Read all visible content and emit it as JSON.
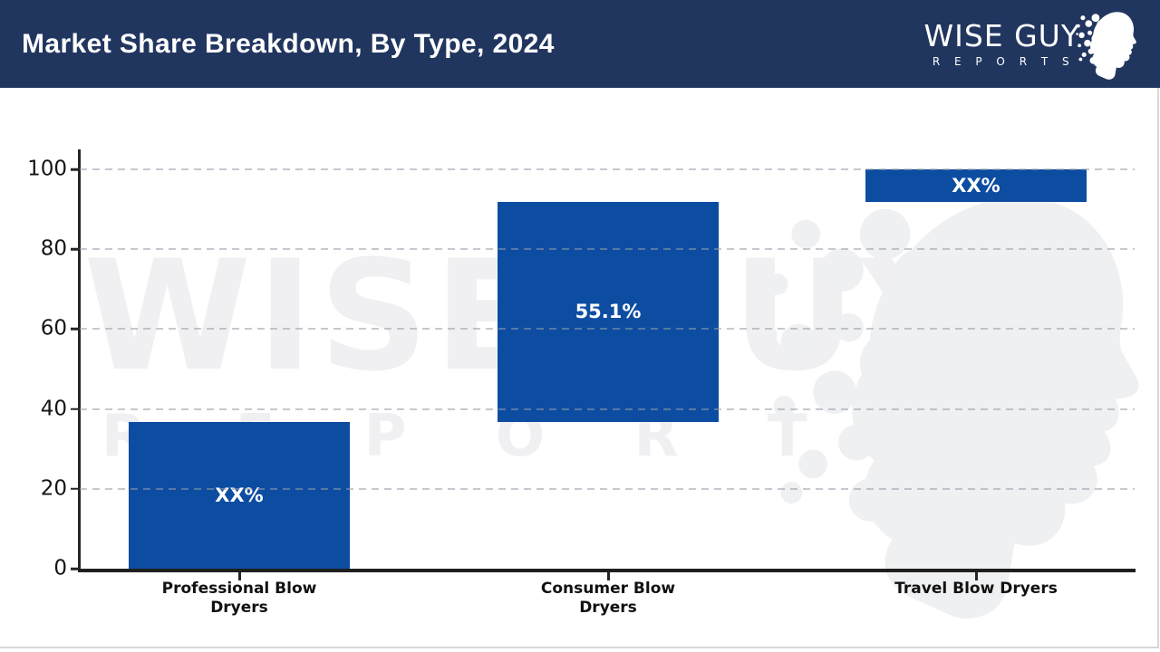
{
  "header": {
    "title": "Market Share Breakdown, By Type, 2024",
    "logo": {
      "wordmark": "WISE GUY",
      "subtext": "R E P O R T S"
    }
  },
  "watermark": {
    "line1": "WISE GUY",
    "line2": "R E P O R T S"
  },
  "chart_data": {
    "type": "bar",
    "subtype": "waterfall",
    "title": "Market Share Breakdown, By Type, 2024",
    "xlabel": "",
    "ylabel": "",
    "categories": [
      "Professional Blow\nDryers",
      "Consumer Blow\nDryers",
      "Travel Blow Dryers"
    ],
    "segments": [
      {
        "category": "Professional Blow Dryers",
        "label_shown": "XX%",
        "start": 0,
        "end": 36.8,
        "estimated_value": 36.8
      },
      {
        "category": "Consumer Blow Dryers",
        "label_shown": "55.1%",
        "start": 36.8,
        "end": 91.9,
        "estimated_value": 55.1
      },
      {
        "category": "Travel Blow Dryers",
        "label_shown": "XX%",
        "start": 91.9,
        "end": 100,
        "estimated_value": 8.1
      }
    ],
    "yticks": [
      0,
      20,
      40,
      60,
      80,
      100
    ],
    "ylim": [
      0,
      105
    ],
    "grid": "horizontal-dashed",
    "legend": null,
    "bar_color": "#0d4da1"
  },
  "colors": {
    "header_bg": "#21365f",
    "bar": "#0d4da1",
    "axis": "#262626",
    "grid": "#d9d9d9",
    "watermark": "#f0f0f2",
    "title_text": "#ffffff",
    "tick_text": "#151515"
  }
}
